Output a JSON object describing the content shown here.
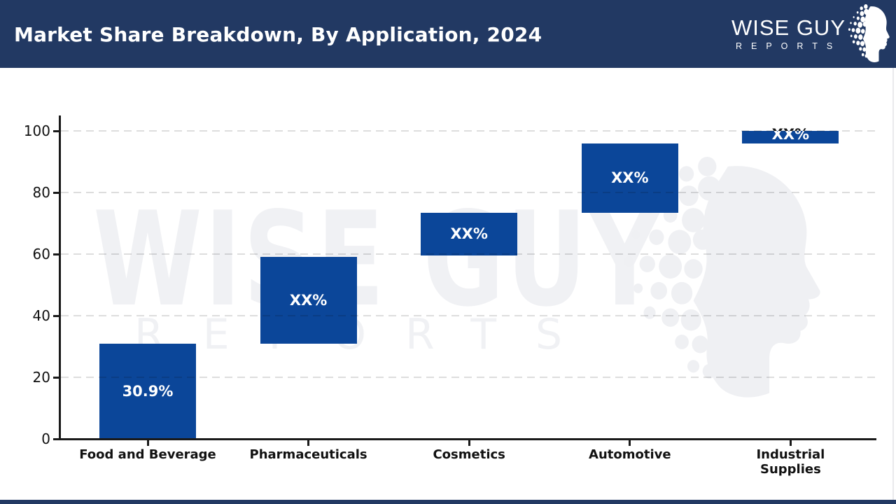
{
  "header": {
    "title": "Market Share Breakdown, By Application, 2024",
    "logo": {
      "brand": "WISE GUY",
      "sub": "REPORTS"
    }
  },
  "watermark": {
    "brand": "WISE GUY",
    "sub": "REPORTS"
  },
  "colors": {
    "header_bg": "#223963",
    "footer_bg": "#223963",
    "bar_fill": "#0b4699",
    "bar_label": "#ffffff",
    "grid_line": "rgba(0,0,0,0.135)",
    "axis_line": "#1a1a1a",
    "text": "#111111",
    "watermark": "#f0f1f4"
  },
  "chart_data": {
    "type": "bar",
    "variant": "floating-segment waterfall of cumulative market share",
    "title": "Market Share Breakdown, By Application, 2024",
    "categories": [
      "Food and Beverage",
      "Pharmaceuticals",
      "Cosmetics",
      "Automotive",
      "Industrial Supplies"
    ],
    "category_label_lines": [
      [
        "Food and Beverage"
      ],
      [
        "Pharmaceuticals"
      ],
      [
        "Cosmetics"
      ],
      [
        "Automotive"
      ],
      [
        "Industrial",
        "Supplies"
      ]
    ],
    "segments": [
      {
        "category": "Food and Beverage",
        "start": 0,
        "end": 30.9,
        "label": "30.9%"
      },
      {
        "category": "Pharmaceuticals",
        "start": 31,
        "end": 59,
        "label": "XX%"
      },
      {
        "category": "Cosmetics",
        "start": 59.5,
        "end": 73.5,
        "label": "XX%"
      },
      {
        "category": "Automotive",
        "start": 73.5,
        "end": 96,
        "label": "XX%"
      },
      {
        "category": "Industrial Supplies",
        "start": 96,
        "end": 100,
        "label": "XX%"
      }
    ],
    "xlabel": "",
    "ylabel": "",
    "ylim": [
      0,
      100
    ],
    "yticks": [
      0,
      20,
      40,
      60,
      80,
      100
    ],
    "grid": "horizontal dashed",
    "legend": "none"
  }
}
